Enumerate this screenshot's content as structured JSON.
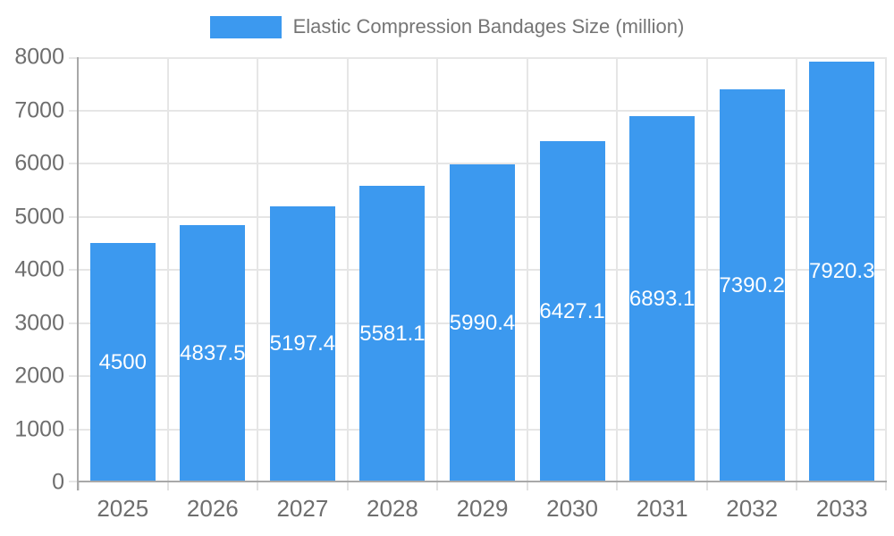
{
  "chart_data": {
    "type": "bar",
    "title": "",
    "legend": "Elastic Compression Bandages Size (million)",
    "legend_position": "top",
    "series_name": "Elastic Compression Bandages Size (million)",
    "categories": [
      "2025",
      "2026",
      "2027",
      "2028",
      "2029",
      "2030",
      "2031",
      "2032",
      "2033"
    ],
    "values": [
      4500,
      4837.5,
      5197.4,
      5581.1,
      5990.4,
      6427.1,
      6893.1,
      7390.2,
      7920.3
    ],
    "value_labels": [
      "4500",
      "4837.5",
      "5197.4",
      "5581.1",
      "5990.4",
      "6427.1",
      "6893.1",
      "7390.2",
      "7920.3"
    ],
    "xlabel": "",
    "ylabel": "",
    "ylim": [
      0,
      8000
    ],
    "yticks": [
      "0",
      "1000",
      "2000",
      "3000",
      "4000",
      "5000",
      "6000",
      "7000",
      "8000"
    ],
    "grid": true,
    "colors": {
      "bar": "#3c99ef",
      "grid_line": "#e6e6e6",
      "axis_line": "#a8a8a8",
      "axis_label": "#6e6e6e",
      "legend_text": "#757575",
      "value_label": "#ffffff",
      "background": "#ffffff"
    }
  }
}
